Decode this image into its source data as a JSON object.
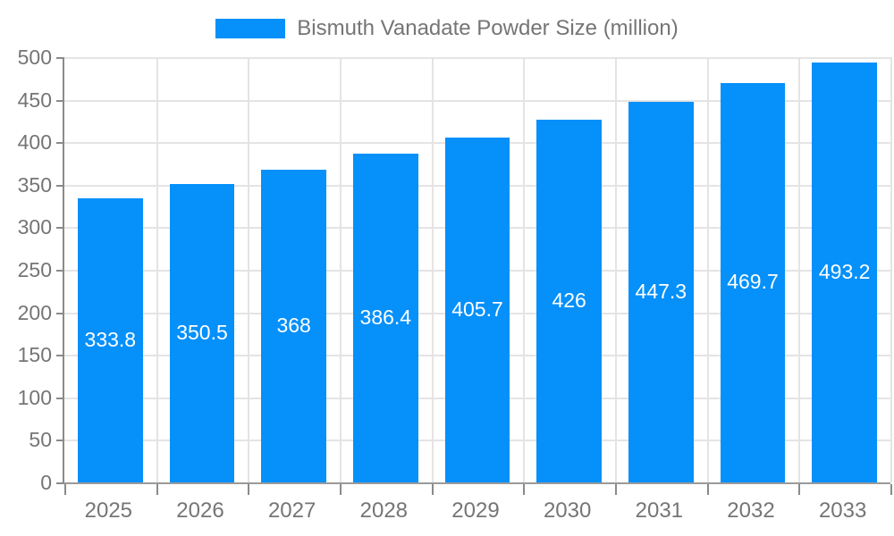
{
  "chart_data": {
    "type": "bar",
    "title": "Bismuth Vanadate Powder Size (million)",
    "categories": [
      "2025",
      "2026",
      "2027",
      "2028",
      "2029",
      "2030",
      "2031",
      "2032",
      "2033"
    ],
    "values": [
      333.8,
      350.5,
      368,
      386.4,
      405.7,
      426,
      447.3,
      469.7,
      493.2
    ],
    "value_labels": [
      "333.8",
      "350.5",
      "368",
      "386.4",
      "405.7",
      "426",
      "447.3",
      "469.7",
      "493.2"
    ],
    "xlabel": "",
    "ylabel": "",
    "ylim": [
      0,
      500
    ],
    "ytick_step": 50,
    "ytick_labels": [
      "0",
      "50",
      "100",
      "150",
      "200",
      "250",
      "300",
      "350",
      "400",
      "450",
      "500"
    ],
    "grid": true,
    "legend_position": "top-center",
    "colors": {
      "bar": "#0590fa",
      "axis_text": "#757575",
      "gridline": "#e4e4e4",
      "axis_line": "#8a8a8a",
      "value_label": "#ffffff"
    }
  }
}
